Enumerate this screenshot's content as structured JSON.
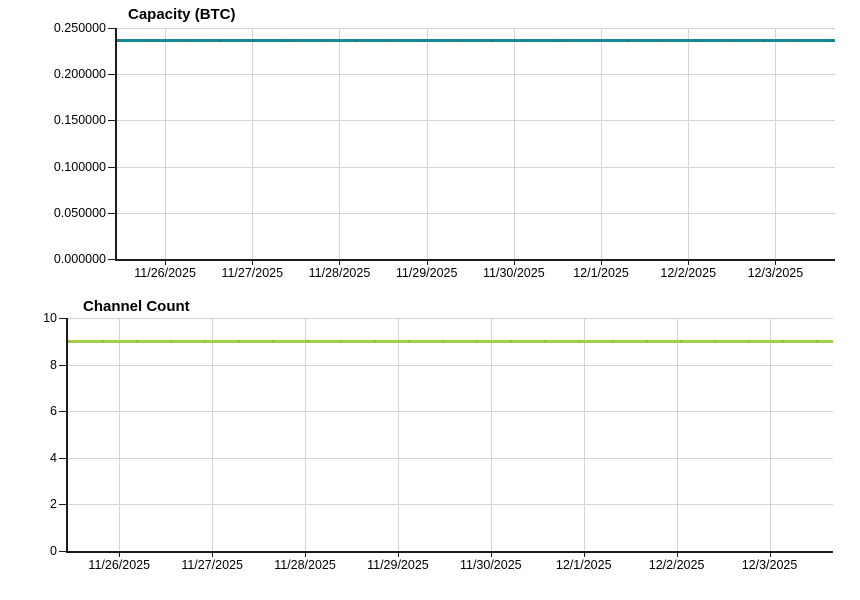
{
  "colors": {
    "background": "#ffffff",
    "grid": "#d4d4d4",
    "axis": "#1c1c1c",
    "text": "#000000",
    "capacity_line": "#178a96",
    "channel_line": "#9fd14c"
  },
  "chart_data": [
    {
      "type": "line",
      "title": "Capacity (BTC)",
      "x_tick_labels": [
        "11/26/2025",
        "11/27/2025",
        "11/28/2025",
        "11/29/2025",
        "11/30/2025",
        "12/1/2025",
        "12/2/2025",
        "12/3/2025"
      ],
      "y_ticks": [
        0.25,
        0.2,
        0.15,
        0.1,
        0.05,
        0
      ],
      "y_tick_labels": [
        "0.250000",
        "0.200000",
        "0.150000",
        "0.100000",
        "0.050000",
        "0.000000"
      ],
      "ylim": [
        0,
        0.25
      ],
      "grid": true,
      "series": [
        {
          "name": "Capacity (BTC)",
          "color": "#178a96",
          "values": [
            0.237,
            0.237,
            0.237,
            0.237,
            0.237,
            0.237,
            0.237,
            0.237
          ]
        }
      ]
    },
    {
      "type": "line",
      "title": "Channel Count",
      "x_tick_labels": [
        "11/26/2025",
        "11/27/2025",
        "11/28/2025",
        "11/29/2025",
        "11/30/2025",
        "12/1/2025",
        "12/2/2025",
        "12/3/2025"
      ],
      "y_ticks": [
        10,
        8,
        6,
        4,
        2,
        0
      ],
      "y_tick_labels": [
        "10",
        "8",
        "6",
        "4",
        "2",
        "0"
      ],
      "ylim": [
        0,
        10
      ],
      "grid": true,
      "series": [
        {
          "name": "Channel Count",
          "color": "#9fd14c",
          "values": [
            9,
            9,
            9,
            9,
            9,
            9,
            9,
            9
          ]
        }
      ]
    }
  ]
}
